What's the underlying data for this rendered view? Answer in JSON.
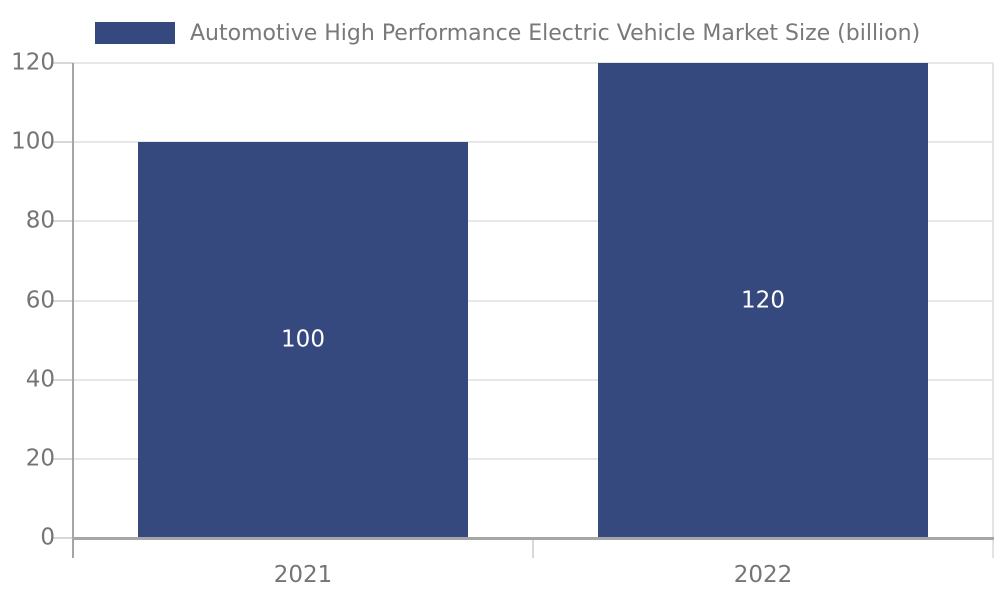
{
  "legend": {
    "label": "Automotive High Performance Electric Vehicle Market Size (billion)"
  },
  "colors": {
    "bar": "#35497E",
    "data_label": "#FFFFFF",
    "tick_label": "#757575",
    "legend_text": "#77797B",
    "axis_line": "#A6A6A6",
    "grid_line": "#E7E7E7",
    "tick_mark": "#D8D8D8",
    "plot_border_right": "#E3E3E3",
    "background": "#FFFFFF"
  },
  "chart_data": {
    "type": "bar",
    "categories": [
      "2021",
      "2022"
    ],
    "series": [
      {
        "name": "Automotive High Performance Electric Vehicle Market Size (billion)",
        "values": [
          100,
          120
        ]
      }
    ],
    "data_labels": [
      "100",
      "120"
    ],
    "title": "Automotive High Performance Electric Vehicle Market Size (billion)",
    "xlabel": "",
    "ylabel": "",
    "ylim": [
      0,
      120
    ],
    "yticks": [
      0,
      20,
      40,
      60,
      80,
      100,
      120
    ],
    "grid": true,
    "legend_position": "top-left",
    "data_label_position": "center-of-bar"
  }
}
